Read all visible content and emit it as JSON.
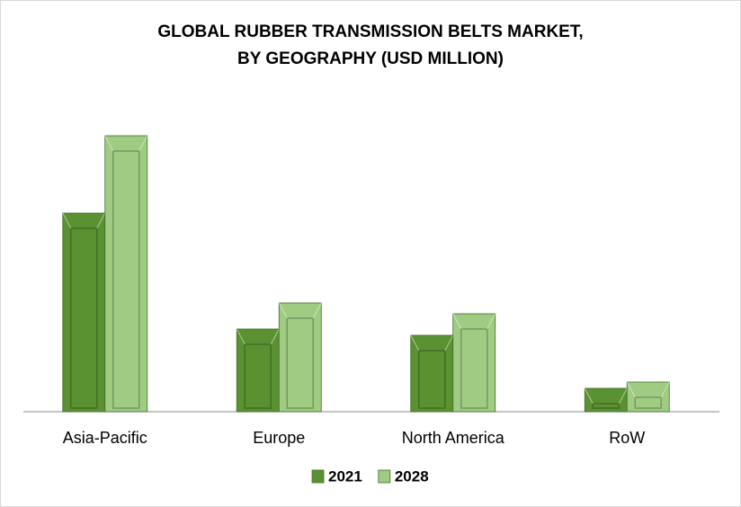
{
  "chart_data": {
    "type": "bar",
    "title": [
      "GLOBAL RUBBER TRANSMISSION BELTS MARKET,",
      "BY GEOGRAPHY (USD MILLION)"
    ],
    "categories": [
      "Asia-Pacific",
      "Europe",
      "North America",
      "RoW"
    ],
    "series": [
      {
        "name": "2021",
        "color": "#5a9232",
        "values": [
          221,
          92,
          85,
          26
        ]
      },
      {
        "name": "2028",
        "color": "#9fcb82",
        "values": [
          307,
          121,
          109,
          33
        ]
      }
    ],
    "legend": "bottom"
  }
}
